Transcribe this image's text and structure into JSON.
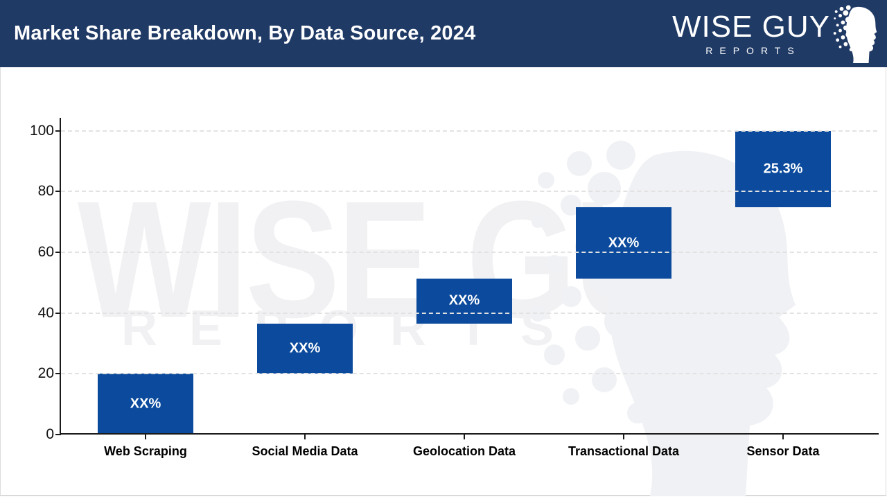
{
  "header": {
    "title": "Market Share Breakdown, By Data Source, 2024",
    "bg_color": "#203a66",
    "logo": {
      "wordmark": "WISE GUY",
      "subtext": "REPORTS"
    }
  },
  "watermark": {
    "wordmark": "WISE GUY",
    "subtext": "REPORTS"
  },
  "chart_data": {
    "type": "bar",
    "subtype": "waterfall (floating stacked segments, one per category)",
    "title": "Market Share Breakdown, By Data Source, 2024",
    "categories": [
      "Web Scraping",
      "Social Media Data",
      "Geolocation Data",
      "Transactional Data",
      "Sensor Data"
    ],
    "segments": [
      {
        "category": "Web Scraping",
        "start": 0,
        "end": 20,
        "value": 20,
        "value_label": "XX%"
      },
      {
        "category": "Social Media Data",
        "start": 20,
        "end": 36.4,
        "value": 16.4,
        "value_label": "XX%"
      },
      {
        "category": "Geolocation Data",
        "start": 36.4,
        "end": 51.4,
        "value": 15,
        "value_label": "XX%"
      },
      {
        "category": "Transactional Data",
        "start": 51.4,
        "end": 74.7,
        "value": 23.3,
        "value_label": "XX%"
      },
      {
        "category": "Sensor Data",
        "start": 74.7,
        "end": 100,
        "value": 25.3,
        "value_label": "25.3%"
      }
    ],
    "yticks": [
      0,
      20,
      40,
      60,
      80,
      100
    ],
    "ylim": [
      0,
      104
    ],
    "xlabel": "",
    "ylabel": "",
    "grid": "horizontal dashed",
    "grid_color": "#e2e2e2",
    "legend": "none",
    "bar_color": "#0b4a9c",
    "bar_label_color": "#ffffff",
    "axis_color": "#1a1a1a"
  }
}
